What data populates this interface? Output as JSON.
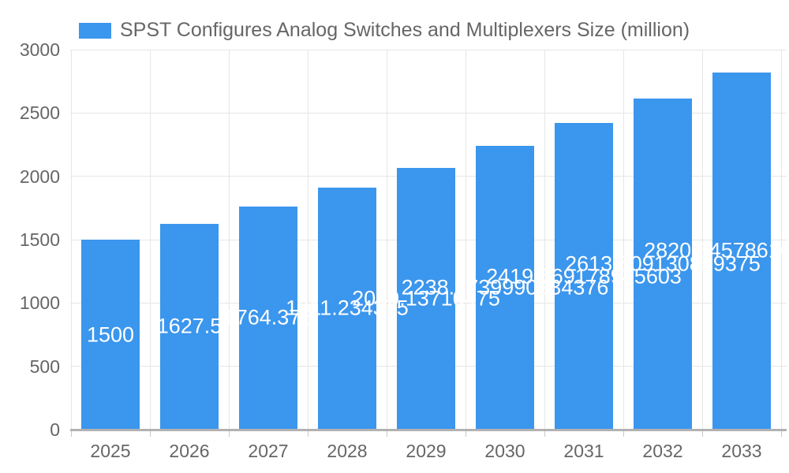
{
  "legend": {
    "label": "SPST Configures Analog Switches and Multiplexers Size (million)"
  },
  "chart_data": {
    "type": "bar",
    "title": "SPST Configures Analog Switches and Multiplexers Size (million)",
    "categories": [
      "2025",
      "2026",
      "2027",
      "2028",
      "2029",
      "2030",
      "2031",
      "2032",
      "2033"
    ],
    "values": [
      1500,
      1627.5,
      1764.375,
      1911.234375,
      2069.13710475,
      2238.8739990234376,
      2419.569178945603,
      2613.609130859375,
      2820.545786169375
    ],
    "xlabel": "",
    "ylabel": "",
    "ylim": [
      0,
      3000
    ],
    "yticks": [
      0,
      500,
      1000,
      1500,
      2000,
      2500,
      3000
    ],
    "grid": "on",
    "legend_position": "top",
    "bar_color": "#3b96ed",
    "label_color": "#ffffff",
    "axis_text_color": "#666666"
  }
}
